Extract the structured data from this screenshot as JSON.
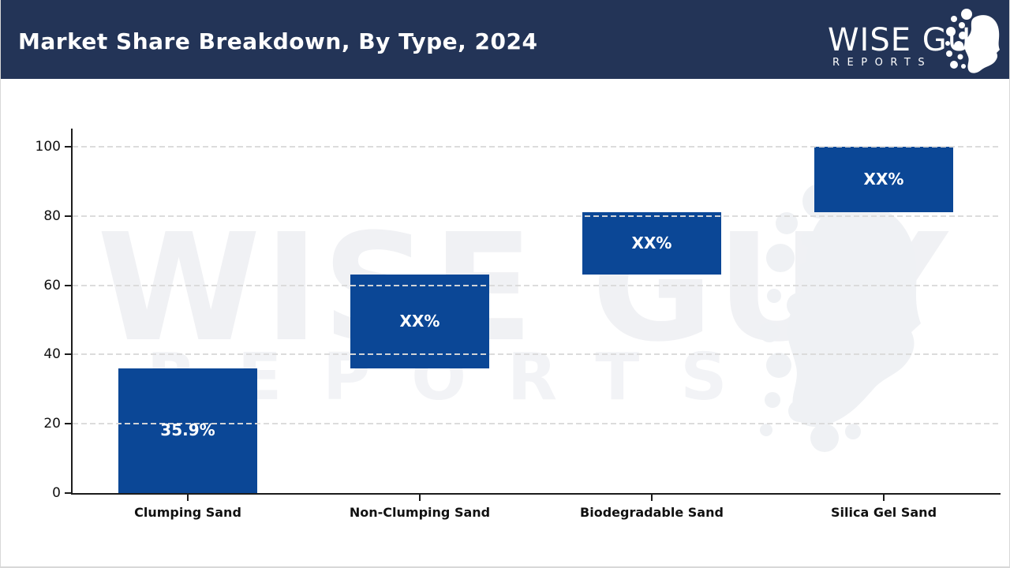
{
  "header": {
    "logo": {
      "line1": "WISE GUY",
      "line2": "REPORTS"
    }
  },
  "watermark": {
    "line1": "WISE GUY",
    "line2": "REPORTS"
  },
  "chart_data": {
    "type": "bar",
    "subtype": "stacked-waterfall-segments",
    "title": "Market Share Breakdown, By Type, 2024",
    "categories": [
      "Clumping Sand",
      "Non-Clumping Sand",
      "Biodegradable Sand",
      "Silica Gel Sand"
    ],
    "segments": [
      {
        "category": "Clumping Sand",
        "start": 0,
        "end": 35.9,
        "label": "35.9%"
      },
      {
        "category": "Non-Clumping Sand",
        "start": 35.9,
        "end": 63,
        "label": "XX%"
      },
      {
        "category": "Biodegradable Sand",
        "start": 63,
        "end": 81,
        "label": "XX%"
      },
      {
        "category": "Silica Gel Sand",
        "start": 81,
        "end": 100,
        "label": "XX%"
      }
    ],
    "yticks": [
      0,
      20,
      40,
      60,
      80,
      100
    ],
    "ylim": [
      0,
      105
    ],
    "xlabel": "",
    "ylabel": "",
    "grid": "horizontal-dashed",
    "legend": "none",
    "bar_color": "#0b4796"
  },
  "colors": {
    "header_bg": "#233457",
    "bar": "#0b4796",
    "grid": "#dadada",
    "axis": "#1c1c1c",
    "watermark": "#f0f1f4"
  }
}
